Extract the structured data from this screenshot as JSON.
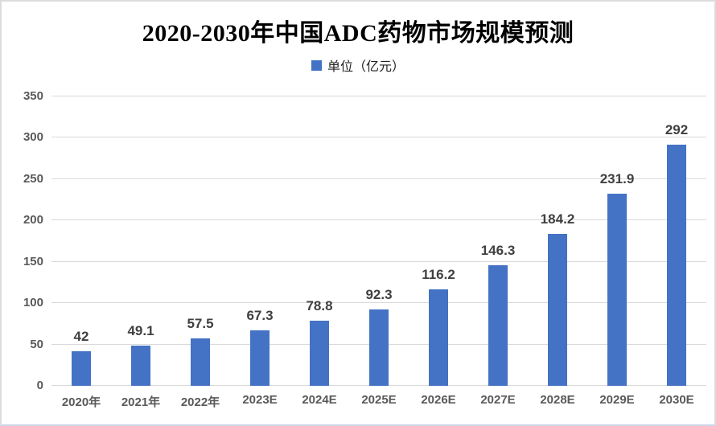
{
  "page": {
    "background": "#ffffff",
    "frame_border_color": "#dcdcdc",
    "frame_border_bottom_color": "#ccd6e8"
  },
  "chart_data": {
    "type": "bar",
    "title": "2020-2030年中国ADC药物市场规模预测",
    "legend": [
      {
        "label": "单位（亿元）",
        "color": "#4472C4"
      }
    ],
    "legend_position": "top",
    "categories": [
      "2020年",
      "2021年",
      "2022年",
      "2023E",
      "2024E",
      "2025E",
      "2026E",
      "2027E",
      "2028E",
      "2029E",
      "2030E"
    ],
    "values": [
      42,
      49.1,
      57.5,
      67.3,
      78.8,
      92.3,
      116.2,
      146.3,
      184.2,
      231.9,
      292
    ],
    "value_labels": [
      "42",
      "49.1",
      "57.5",
      "67.3",
      "78.8",
      "92.3",
      "116.2",
      "146.3",
      "184.2",
      "231.9",
      "292"
    ],
    "xlabel": "",
    "ylabel": "",
    "ylim": [
      0,
      350
    ],
    "yticks": [
      0,
      50,
      100,
      150,
      200,
      250,
      300,
      350
    ],
    "grid": true,
    "bar_color": "#4472C4",
    "colors": {
      "gridline": "#d9d9d9",
      "axis_label": "#595959",
      "value_label": "#404040",
      "title": "#000000"
    }
  }
}
